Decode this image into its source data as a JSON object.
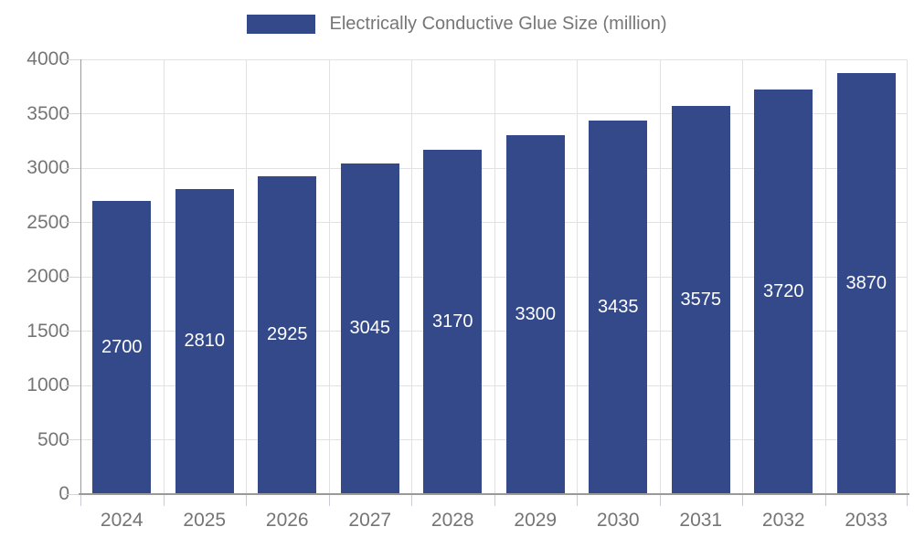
{
  "legend": {
    "label": "Electrically Conductive Glue Size (million)"
  },
  "colors": {
    "bar": "#34498a",
    "axis_line": "#9a9a9a",
    "gridline": "#e2e2e2",
    "axis_text": "#757575",
    "value_label_text": "#ffffff"
  },
  "chart_data": {
    "type": "bar",
    "title": "Electrically Conductive Glue Size (million)",
    "categories": [
      "2024",
      "2025",
      "2026",
      "2027",
      "2028",
      "2029",
      "2030",
      "2031",
      "2032",
      "2033"
    ],
    "series": [
      {
        "name": "Electrically Conductive Glue Size (million)",
        "values": [
          2700,
          2810,
          2925,
          3045,
          3170,
          3300,
          3435,
          3575,
          3720,
          3870
        ]
      }
    ],
    "value_labels_shown": true,
    "value_label_position": "inside-middle",
    "xlabel": "",
    "ylabel": "",
    "ylim": [
      0,
      4000
    ],
    "yticks": [
      0,
      500,
      1000,
      1500,
      2000,
      2500,
      3000,
      3500,
      4000
    ],
    "grid": "horizontal-and-vertical",
    "legend_position": "top-center"
  }
}
